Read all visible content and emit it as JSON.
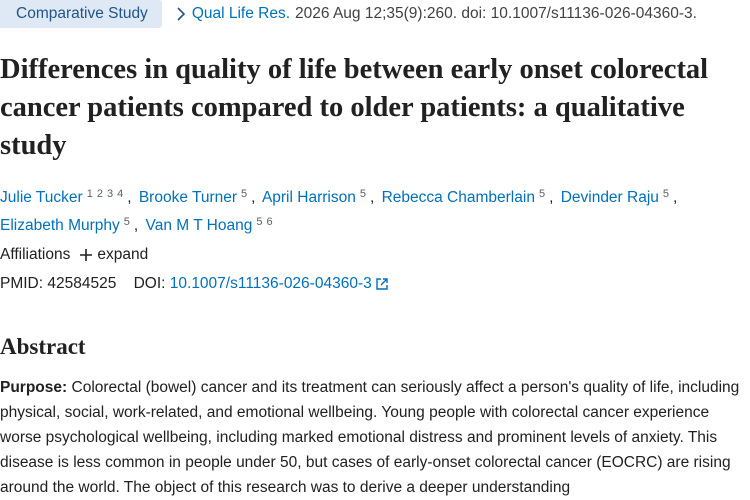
{
  "header": {
    "publication_type": "Comparative Study",
    "journal": "Qual Life Res.",
    "citation": "2026 Aug 12;35(9):260. doi: 10.1007/s11136-026-04360-3."
  },
  "title": "Differences in quality of life between early onset colorectal cancer patients compared to older patients: a qualitative study",
  "authors": [
    {
      "name": "Julie Tucker",
      "affiliations": [
        "1",
        "2",
        "3",
        "4"
      ]
    },
    {
      "name": "Brooke Turner",
      "affiliations": [
        "5"
      ]
    },
    {
      "name": "April Harrison",
      "affiliations": [
        "5"
      ]
    },
    {
      "name": "Rebecca Chamberlain",
      "affiliations": [
        "5"
      ]
    },
    {
      "name": "Devinder Raju",
      "affiliations": [
        "5"
      ]
    },
    {
      "name": "Elizabeth Murphy",
      "affiliations": [
        "5"
      ]
    },
    {
      "name": "Van M T Hoang",
      "affiliations": [
        "5",
        "6"
      ]
    }
  ],
  "affiliations": {
    "label": "Affiliations",
    "toggle": "expand"
  },
  "identifiers": {
    "pmid_label": "PMID:",
    "pmid": "42584525",
    "doi_label": "DOI:",
    "doi": "10.1007/s11136-026-04360-3"
  },
  "abstract": {
    "heading": "Abstract",
    "sections": [
      {
        "label": "Purpose:",
        "text": "Colorectal (bowel) cancer and its treatment can seriously affect a person's quality of life, including physical, social, work-related, and emotional wellbeing. Young people with colorectal cancer experience worse psychological wellbeing, including marked emotional distress and prominent levels of anxiety. This disease is less common in people under 50, but cases of early-onset colorectal cancer (EOCRC) are rising around the world. The object of this research was to derive a deeper understanding"
      }
    ]
  }
}
